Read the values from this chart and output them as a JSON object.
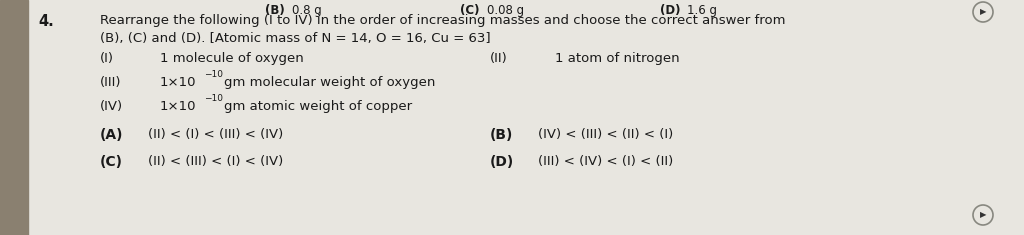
{
  "bg_color": "#d8d4cc",
  "page_color": "#e8e6e0",
  "text_color": "#1a1a1a",
  "question_number": "4.",
  "line1": "Rearrange the following (I to IV) in the order of increasing masses and choose the correct answer from",
  "line2": "(B), (C) and (D). [Atomic mass of N = 14, O = 16, Cu = 63]",
  "font_size_main": 9.5,
  "font_size_small": 8.5,
  "font_size_super": 6.5
}
